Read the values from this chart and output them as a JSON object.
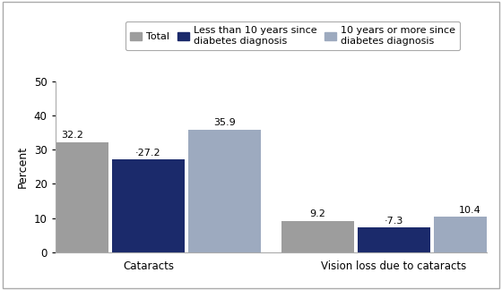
{
  "categories": [
    "Cataracts",
    "Vision loss due to cataracts"
  ],
  "series": [
    {
      "label": "Total",
      "values": [
        32.2,
        9.2
      ],
      "color": "#9d9d9d"
    },
    {
      "label": "Less than 10 years since\ndiabetes diagnosis",
      "values": [
        27.2,
        7.3
      ],
      "color": "#1b2a6b"
    },
    {
      "label": "10 years or more since\ndiabetes diagnosis",
      "values": [
        35.9,
        10.4
      ],
      "color": "#9daabf"
    }
  ],
  "ylabel": "Percent",
  "ylim": [
    0,
    50
  ],
  "yticks": [
    0,
    10,
    20,
    30,
    40,
    50
  ],
  "bar_width": 0.18,
  "value_labels_cat": [
    "32.2",
    "‧27.2",
    "35.9"
  ],
  "value_labels_vis": [
    "9.2",
    "‧7.3",
    "10.4"
  ],
  "background_color": "#ffffff",
  "border_color": "#aaaaaa",
  "fontsize_ticks": 8.5,
  "fontsize_ylabel": 9,
  "fontsize_legend": 8,
  "fontsize_values": 8
}
